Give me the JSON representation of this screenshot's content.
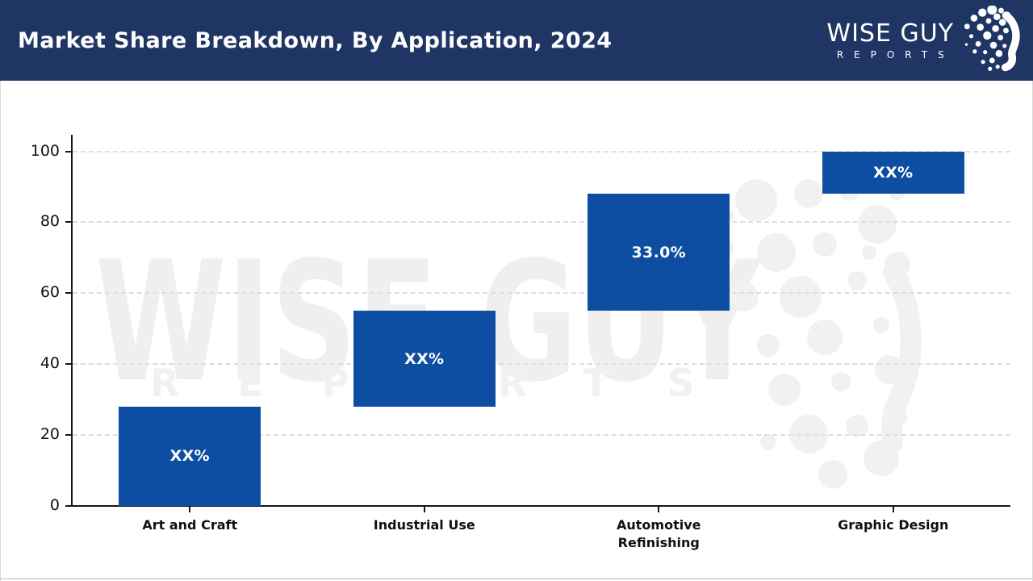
{
  "header": {
    "title": "Market Share Breakdown, By Application, 2024",
    "bg_color": "#1f3564",
    "logo": {
      "line1": "WISE GUY",
      "line2": "REPORTS"
    }
  },
  "watermark": {
    "line1": "WISE GUY",
    "line2": "REPORTS"
  },
  "chart_data": {
    "type": "bar",
    "subtype": "floating-waterfall",
    "title": "Market Share Breakdown, By Application, 2024",
    "xlabel": "",
    "ylabel": "",
    "ylim": [
      0,
      100
    ],
    "yticks": [
      0,
      20,
      40,
      60,
      80,
      100
    ],
    "grid": true,
    "grid_style": "dashed",
    "bar_color": "#0d4da2",
    "label_color": "#ffffff",
    "categories": [
      "Art and Craft",
      "Industrial Use",
      "Automotive Refinishing",
      "Graphic Design"
    ],
    "series": [
      {
        "name": "Market Share",
        "segments": [
          {
            "category": "Art and Craft",
            "start": 0,
            "end": 28,
            "label": "XX%"
          },
          {
            "category": "Industrial Use",
            "start": 28,
            "end": 55,
            "label": "XX%"
          },
          {
            "category": "Automotive Refinishing",
            "start": 55,
            "end": 88,
            "label": "33.0%"
          },
          {
            "category": "Graphic Design",
            "start": 88,
            "end": 100,
            "label": "XX%"
          }
        ]
      }
    ]
  }
}
